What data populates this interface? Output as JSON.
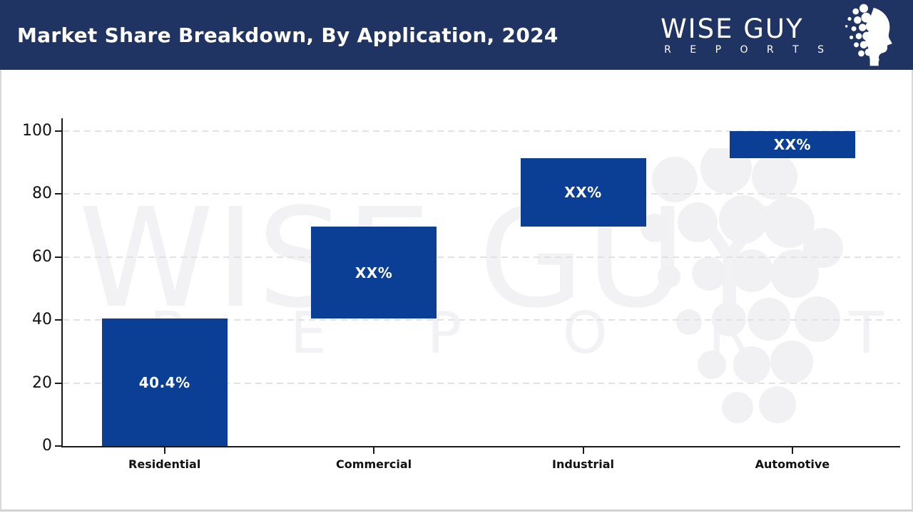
{
  "header": {
    "title": "Market Share Breakdown, By Application, 2024",
    "logo": {
      "line1": "WISE GUY",
      "line2": "R E P O R T S",
      "head_icon": "dotted-head-profile-icon"
    }
  },
  "watermark": {
    "line1": "WISE GUY",
    "line2": "R E P O R T S"
  },
  "chart_data": {
    "type": "bar",
    "subtype": "waterfall-floating-bars",
    "title": "Market Share Breakdown, By Application, 2024",
    "xlabel": "",
    "ylabel": "",
    "categories": [
      "Residential",
      "Commercial",
      "Industrial",
      "Automotive"
    ],
    "segments": [
      {
        "category": "Residential",
        "start": 0,
        "end": 40.4,
        "label": "40.4%"
      },
      {
        "category": "Commercial",
        "start": 40.4,
        "end": 69.7,
        "label": "XX%"
      },
      {
        "category": "Industrial",
        "start": 69.7,
        "end": 91.5,
        "label": "XX%"
      },
      {
        "category": "Automotive",
        "start": 91.5,
        "end": 100,
        "label": "XX%"
      }
    ],
    "ylim": [
      0,
      104
    ],
    "yticks": [
      0,
      20,
      40,
      60,
      80,
      100
    ],
    "grid": "horizontal dashed at yticks above 0",
    "legend": "none",
    "bar_color": "#0b3e95",
    "bar_label_color": "#ffffff",
    "axis_color": "#1a1a1a",
    "grid_color": "#e2e2e4"
  },
  "colors": {
    "header_bg": "#203463",
    "header_text": "#ffffff",
    "bar": "#0b3e95",
    "watermark": "#f2f2f5",
    "page_border": "#d6d6d8",
    "background": "#ffffff"
  }
}
